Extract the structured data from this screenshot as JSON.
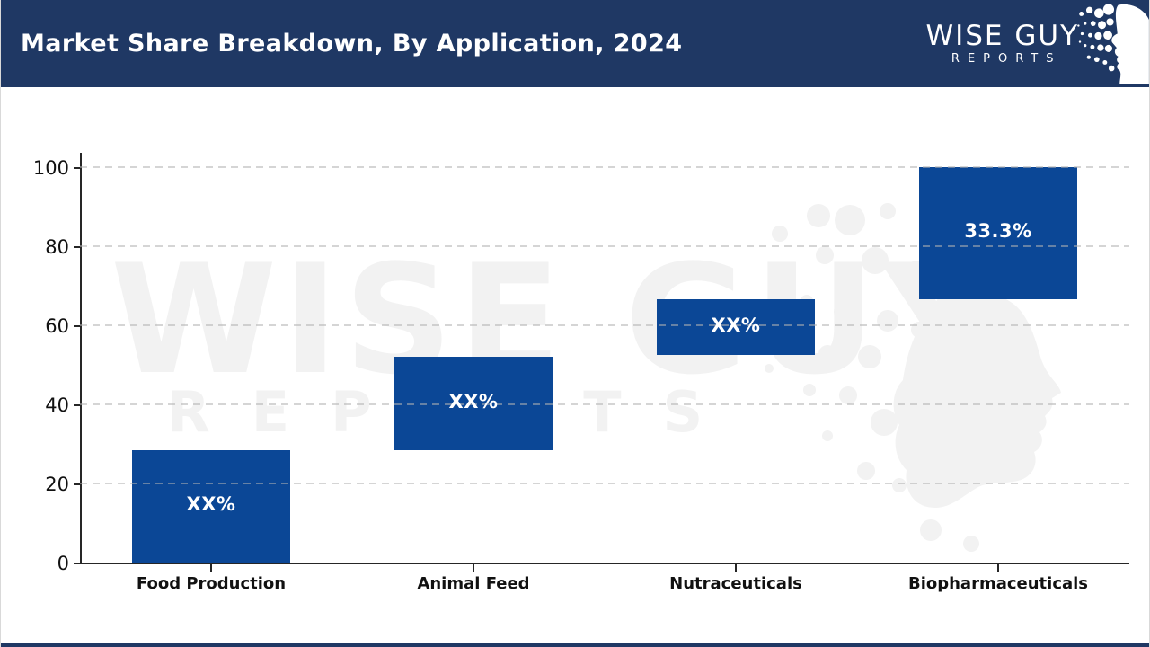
{
  "header": {
    "title": "Market Share Breakdown, By Application, 2024",
    "logo_line1": "WISE GUY",
    "logo_line2": "REPORTS"
  },
  "watermark": {
    "line1": "WISE GUY",
    "line2": "REPORTS"
  },
  "chart_data": {
    "type": "bar",
    "variant": "floating-segment (waterfall-style market share breakdown)",
    "title": "Market Share Breakdown, By Application, 2024",
    "categories": [
      "Food Production",
      "Animal Feed",
      "Nutraceuticals",
      "Biopharmaceuticals"
    ],
    "segments": [
      {
        "category": "Food Production",
        "start": 0,
        "end": 28.5,
        "label": "XX%"
      },
      {
        "category": "Animal Feed",
        "start": 28.5,
        "end": 52.0,
        "label": "XX%"
      },
      {
        "category": "Nutraceuticals",
        "start": 52.5,
        "end": 66.5,
        "label": "XX%"
      },
      {
        "category": "Biopharmaceuticals",
        "start": 66.7,
        "end": 100,
        "label": "33.3%"
      }
    ],
    "yticks": [
      0,
      20,
      40,
      60,
      80,
      100
    ],
    "ylim": [
      0,
      105
    ],
    "xlabel": "",
    "ylabel": "",
    "legend": null,
    "grid": {
      "axis": "y",
      "style": "dashed",
      "drawn_over_bars": true
    },
    "bar_color": "#0b4796",
    "bar_label_color": "#ffffff"
  },
  "colors": {
    "header_bg": "#1f3864",
    "footer_bg": "#1f3864",
    "bar": "#0b4796",
    "grid": "#d9d9d9",
    "axis": "#262626",
    "watermark": "#f2f2f2",
    "title_text": "#ffffff"
  }
}
